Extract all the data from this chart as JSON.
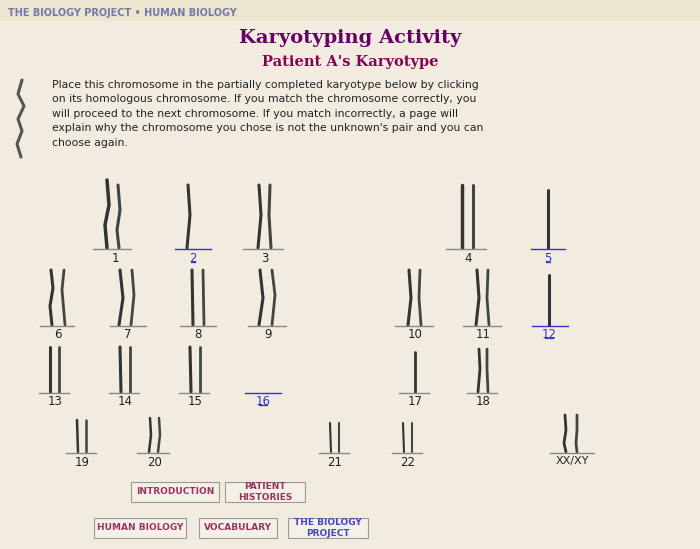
{
  "bg_color": "#f2ece0",
  "header_text": "THE BIOLOGY PROJECT • HUMAN BIOLOGY",
  "header_color": "#7777aa",
  "title": "Karyotyping Activity",
  "title_color": "#660066",
  "subtitle": "Patient A's Karyotype",
  "subtitle_color": "#880055",
  "body_text": "Place this chromosome in the partially completed karyotype below by clicking\non its homologous chromosome. If you match the chromosome correctly, you\nwill proceed to the next chromosome. If you match incorrectly, a page will\nexplain why the chromosome you chose is not the unknown's pair and you can\nchoose again.",
  "body_color": "#222222",
  "link_color": "#3333cc",
  "label_color": "#222222",
  "btn_bg": "#f5f0e5",
  "btn_border": "#999999",
  "btn_text_dark": "#993366",
  "btn_text_blue": "#4444cc"
}
